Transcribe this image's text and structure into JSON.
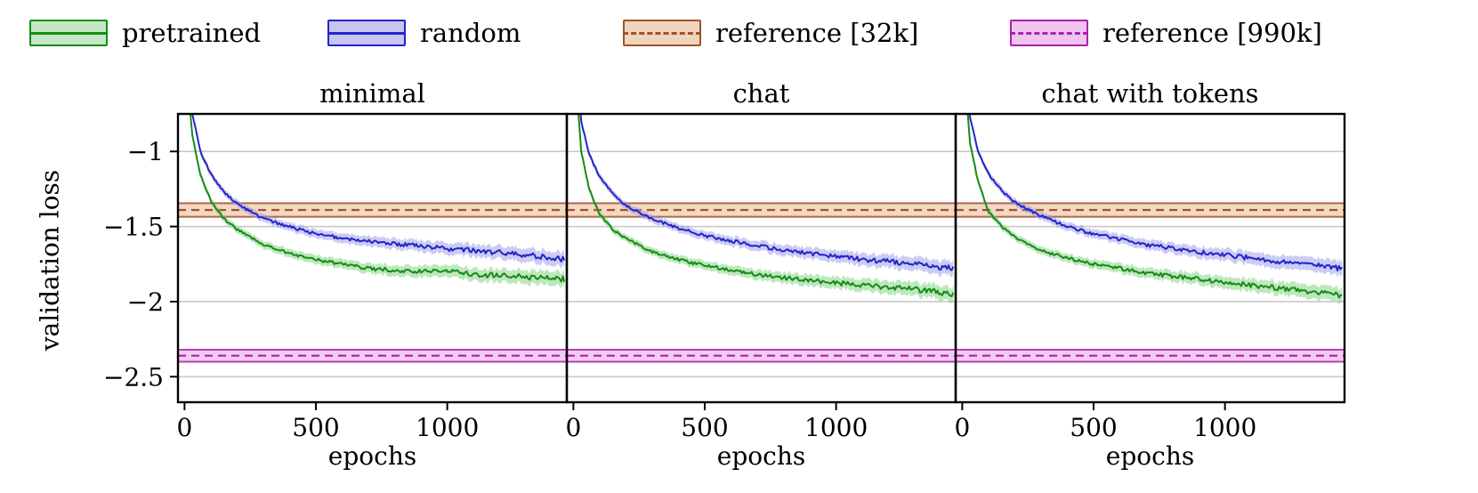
{
  "legend": {
    "items": [
      {
        "label": "pretrained",
        "color": "#168c16",
        "fill": "#c3e7c3",
        "line_style": "solid"
      },
      {
        "label": "random",
        "color": "#2424cc",
        "fill": "#c6c6f0",
        "line_style": "solid"
      },
      {
        "label": "reference [32k]",
        "color": "#a0522d",
        "fill": "#f0d4bc",
        "line_style": "dashed"
      },
      {
        "label": "reference [990k]",
        "color": "#aa22aa",
        "fill": "#f0c4ee",
        "line_style": "dashed"
      }
    ]
  },
  "chart_data": {
    "type": "line",
    "ylabel": "validation loss",
    "xlabel": "epochs",
    "xlim": [
      -25,
      1455
    ],
    "ylim": [
      -2.67,
      -0.75
    ],
    "yticks": [
      -1.0,
      -1.5,
      -2.0,
      -2.5
    ],
    "xticks": [
      0,
      500,
      1000
    ],
    "grid": "horizontal",
    "legend_position": "top",
    "reference_lines": [
      {
        "name": "reference [32k]",
        "value": -1.39,
        "band": 0.045,
        "color": "#a0522d",
        "fill": "#eab890",
        "style": "dashed"
      },
      {
        "name": "reference [990k]",
        "value": -2.36,
        "band": 0.04,
        "color": "#aa22aa",
        "fill": "#eaa0e8",
        "style": "dashed"
      }
    ],
    "subplots": [
      {
        "title": "minimal",
        "series": [
          {
            "name": "pretrained",
            "color": "#168c16",
            "fill": "#7ecf7e",
            "points": [
              [
                0,
                -0.3
              ],
              [
                30,
                -0.9
              ],
              [
                60,
                -1.15
              ],
              [
                100,
                -1.33
              ],
              [
                150,
                -1.45
              ],
              [
                200,
                -1.52
              ],
              [
                300,
                -1.62
              ],
              [
                400,
                -1.68
              ],
              [
                500,
                -1.72
              ],
              [
                700,
                -1.78
              ],
              [
                900,
                -1.8
              ],
              [
                1000,
                -1.79
              ],
              [
                1100,
                -1.82
              ],
              [
                1250,
                -1.83
              ],
              [
                1450,
                -1.85
              ]
            ]
          },
          {
            "name": "random",
            "color": "#2424cc",
            "fill": "#9a9ae8",
            "points": [
              [
                0,
                -0.2
              ],
              [
                30,
                -0.75
              ],
              [
                60,
                -1.0
              ],
              [
                100,
                -1.15
              ],
              [
                150,
                -1.27
              ],
              [
                200,
                -1.35
              ],
              [
                300,
                -1.45
              ],
              [
                400,
                -1.5
              ],
              [
                500,
                -1.55
              ],
              [
                700,
                -1.6
              ],
              [
                900,
                -1.63
              ],
              [
                1000,
                -1.65
              ],
              [
                1100,
                -1.66
              ],
              [
                1250,
                -1.68
              ],
              [
                1450,
                -1.72
              ]
            ]
          }
        ]
      },
      {
        "title": "chat",
        "series": [
          {
            "name": "pretrained",
            "color": "#168c16",
            "fill": "#7ecf7e",
            "points": [
              [
                0,
                -0.3
              ],
              [
                30,
                -1.0
              ],
              [
                60,
                -1.25
              ],
              [
                100,
                -1.42
              ],
              [
                150,
                -1.52
              ],
              [
                200,
                -1.58
              ],
              [
                300,
                -1.67
              ],
              [
                400,
                -1.72
              ],
              [
                500,
                -1.76
              ],
              [
                700,
                -1.82
              ],
              [
                900,
                -1.86
              ],
              [
                1100,
                -1.89
              ],
              [
                1250,
                -1.91
              ],
              [
                1450,
                -1.95
              ]
            ]
          },
          {
            "name": "random",
            "color": "#2424cc",
            "fill": "#9a9ae8",
            "points": [
              [
                0,
                -0.2
              ],
              [
                30,
                -0.8
              ],
              [
                60,
                -1.02
              ],
              [
                100,
                -1.17
              ],
              [
                150,
                -1.28
              ],
              [
                200,
                -1.36
              ],
              [
                300,
                -1.45
              ],
              [
                400,
                -1.51
              ],
              [
                500,
                -1.56
              ],
              [
                700,
                -1.63
              ],
              [
                900,
                -1.68
              ],
              [
                1100,
                -1.72
              ],
              [
                1250,
                -1.74
              ],
              [
                1450,
                -1.78
              ]
            ]
          }
        ]
      },
      {
        "title": "chat with tokens",
        "series": [
          {
            "name": "pretrained",
            "color": "#168c16",
            "fill": "#7ecf7e",
            "points": [
              [
                0,
                -0.3
              ],
              [
                30,
                -0.95
              ],
              [
                60,
                -1.2
              ],
              [
                100,
                -1.4
              ],
              [
                150,
                -1.5
              ],
              [
                200,
                -1.57
              ],
              [
                300,
                -1.66
              ],
              [
                400,
                -1.71
              ],
              [
                500,
                -1.75
              ],
              [
                700,
                -1.81
              ],
              [
                900,
                -1.85
              ],
              [
                1100,
                -1.89
              ],
              [
                1250,
                -1.92
              ],
              [
                1450,
                -1.96
              ]
            ]
          },
          {
            "name": "random",
            "color": "#2424cc",
            "fill": "#9a9ae8",
            "points": [
              [
                0,
                -0.2
              ],
              [
                30,
                -0.78
              ],
              [
                60,
                -1.0
              ],
              [
                100,
                -1.15
              ],
              [
                150,
                -1.26
              ],
              [
                200,
                -1.34
              ],
              [
                300,
                -1.43
              ],
              [
                400,
                -1.5
              ],
              [
                500,
                -1.55
              ],
              [
                700,
                -1.62
              ],
              [
                900,
                -1.67
              ],
              [
                1100,
                -1.71
              ],
              [
                1250,
                -1.74
              ],
              [
                1450,
                -1.78
              ]
            ]
          }
        ]
      }
    ]
  }
}
